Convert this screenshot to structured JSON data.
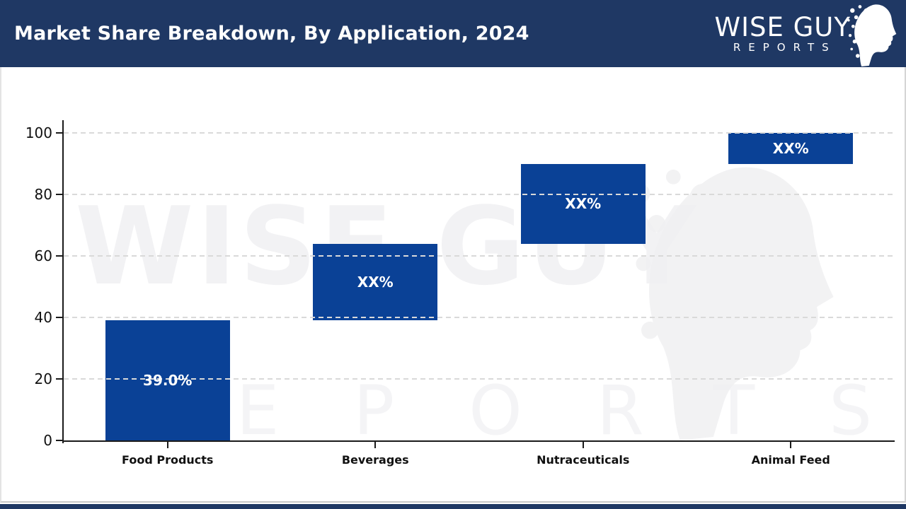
{
  "header": {
    "title": "Market Share Breakdown, By Application, 2024",
    "logo": {
      "line1": "WISE GUY",
      "line2": "REPORTS"
    }
  },
  "watermark": {
    "line1": "WISE GUY",
    "line2": "REPORTS"
  },
  "chart_data": {
    "type": "bar",
    "subtype": "waterfall",
    "title": "Market Share Breakdown, By Application, 2024",
    "xlabel": "",
    "ylabel": "",
    "categories": [
      "Food Products",
      "Beverages",
      "Nutraceuticals",
      "Animal Feed"
    ],
    "segments": [
      {
        "category": "Food Products",
        "start": 0,
        "end": 39,
        "label": "39.0%"
      },
      {
        "category": "Beverages",
        "start": 39,
        "end": 64,
        "label": "XX%"
      },
      {
        "category": "Nutraceuticals",
        "start": 64,
        "end": 90,
        "label": "XX%"
      },
      {
        "category": "Animal Feed",
        "start": 90,
        "end": 100,
        "label": "XX%"
      }
    ],
    "y_ticks": [
      "0",
      "20",
      "40",
      "60",
      "80",
      "100"
    ],
    "ylim": [
      0,
      100
    ],
    "grid": true,
    "legend": false
  },
  "colors": {
    "header_navy": "#1f3864",
    "bar_blue": "#0a4196",
    "gridline": "#d9d9d9",
    "axis": "#1a1a1a",
    "bar_label": "#ffffff",
    "watermark": "#f2f2f4"
  }
}
